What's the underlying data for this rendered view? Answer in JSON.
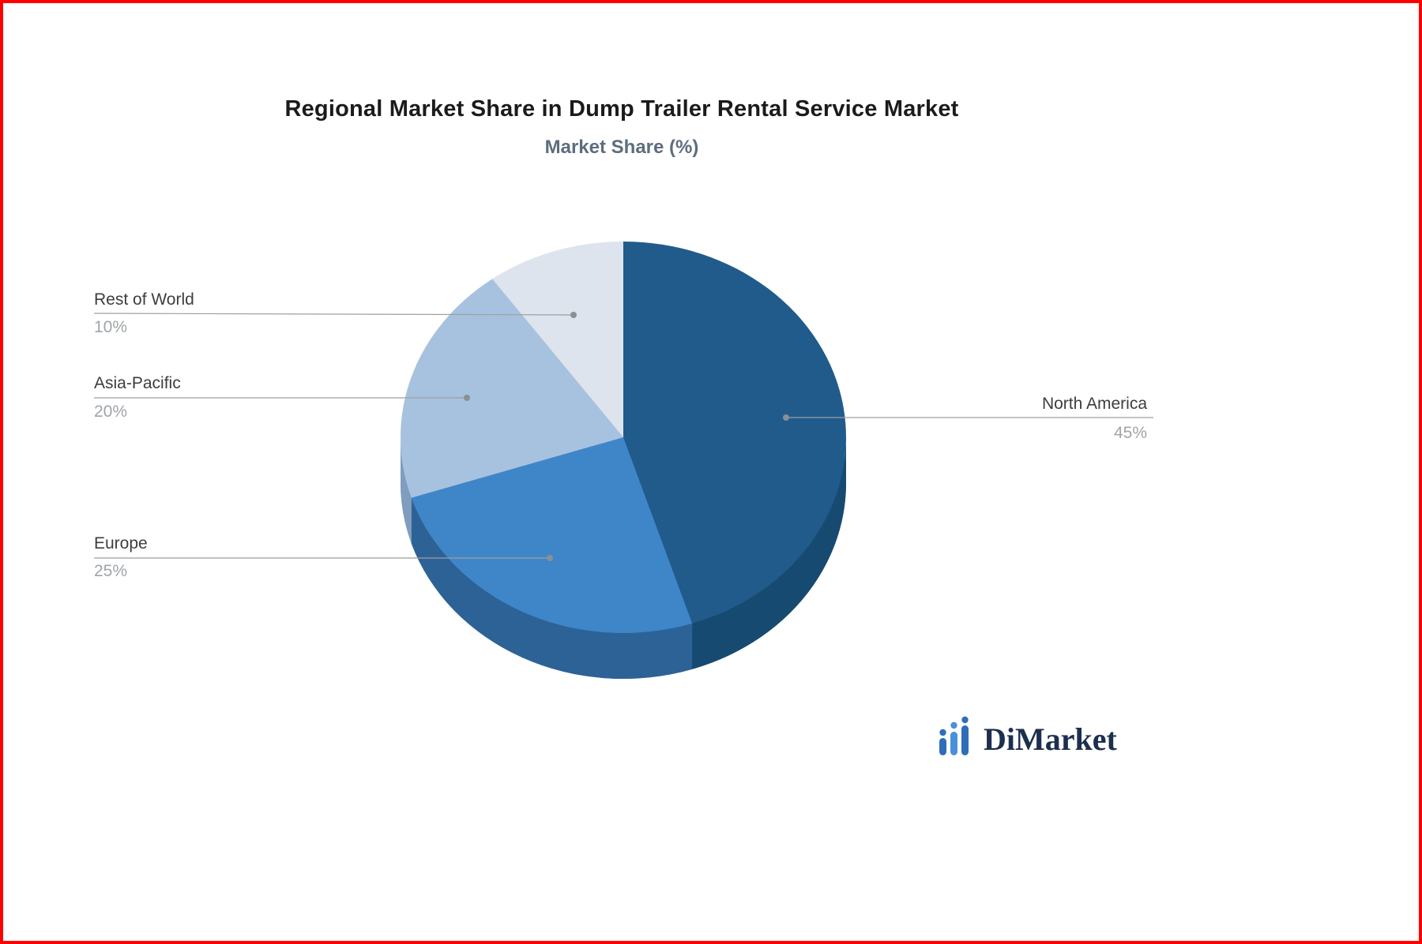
{
  "page": {
    "background_color": "#ffffff",
    "border_color": "#ff0000"
  },
  "header": {
    "title": "Regional Market Share in Dump Trailer Rental Service Market",
    "subtitle": "Market Share (%)"
  },
  "chart_data": {
    "type": "pie",
    "title": "Regional Market Share in Dump Trailer Rental Service Market",
    "subtitle": "Market Share (%)",
    "unit": "%",
    "style": "3d-pie",
    "start_angle_deg_from_top_clockwise": 0,
    "legend": "none (callout labels with leader lines)",
    "slices": [
      {
        "label": "North America",
        "value": 45,
        "display": "45%",
        "color": "#205b8c",
        "side_color": "#174a70",
        "label_side": "right"
      },
      {
        "label": "Europe",
        "value": 25,
        "display": "25%",
        "color": "#3e86c8",
        "side_color": "#2d6296",
        "label_side": "left"
      },
      {
        "label": "Asia-Pacific",
        "value": 20,
        "display": "20%",
        "color": "#a7c2df",
        "side_color": "#7f9dbe",
        "label_side": "left"
      },
      {
        "label": "Rest of World",
        "value": 10,
        "display": "10%",
        "color": "#dde4ee",
        "side_color": "#b8c2d2",
        "label_side": "left"
      }
    ]
  },
  "logo": {
    "text": "DiMarket",
    "icon": "bar-chart-icon",
    "text_color": "#1d2f4e",
    "icon_color": "#2f6db8",
    "icon_accent_color": "#4a90d9"
  }
}
